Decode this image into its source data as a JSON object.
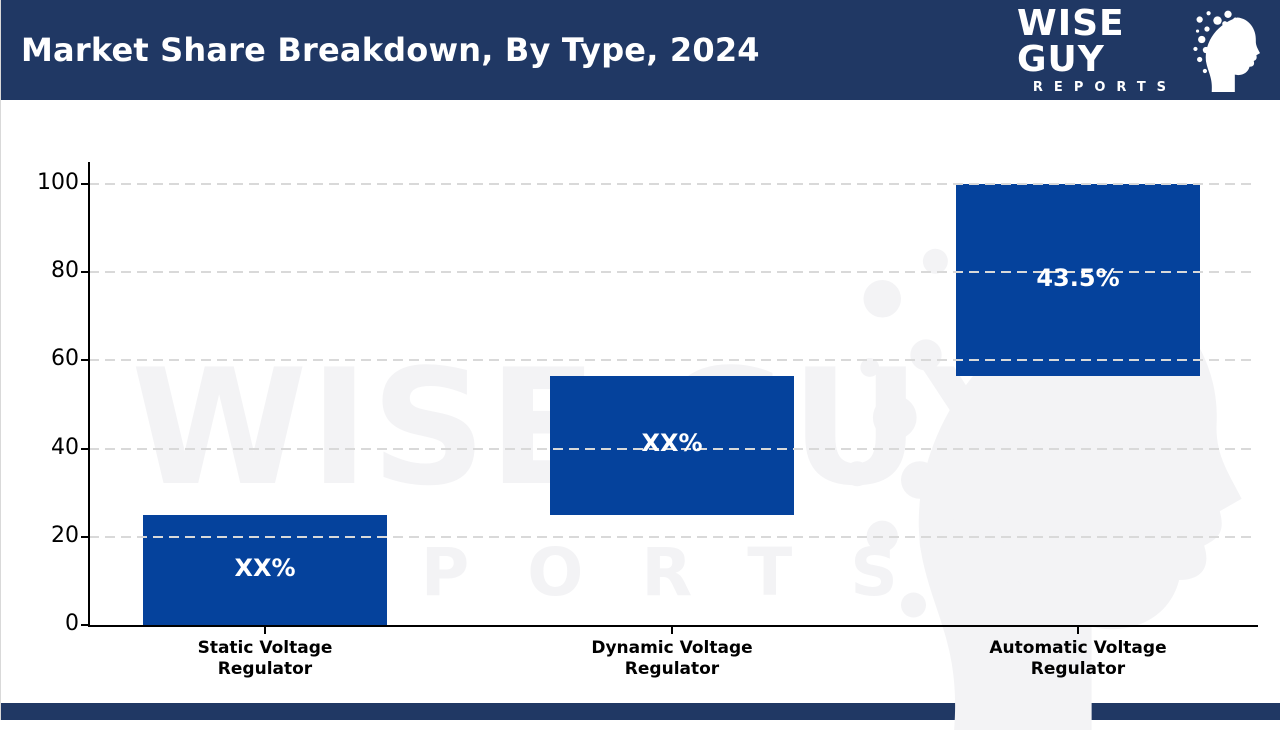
{
  "header": {
    "title": "Market Share Breakdown, By Type, 2024",
    "logo": {
      "name": "WISE GUY",
      "tagline": "REPORTS"
    }
  },
  "watermark": {
    "name": "WISE GUY",
    "tagline": "REPORTS"
  },
  "colors": {
    "header_bg": "#203864",
    "footer_bg": "#203864",
    "bar": "#05429C",
    "grid": "#D9D9D9",
    "axis": "#000000",
    "value_label": "#FFFFFF",
    "watermark": "#F3F3F5",
    "background": "#FFFFFF"
  },
  "chart_data": {
    "type": "bar",
    "subtype": "floating-segment-waterfall",
    "title": "Market Share Breakdown, By Type, 2024",
    "categories": [
      "Static Voltage Regulator",
      "Dynamic Voltage Regulator",
      "Automatic Voltage Regulator"
    ],
    "segments": [
      {
        "category": "Static Voltage Regulator",
        "start": 0,
        "end": 25,
        "label": "XX%"
      },
      {
        "category": "Dynamic Voltage Regulator",
        "start": 25,
        "end": 56.5,
        "label": "XX%"
      },
      {
        "category": "Automatic Voltage Regulator",
        "start": 56.5,
        "end": 100,
        "label": "43.5%"
      }
    ],
    "yticks": [
      0,
      20,
      40,
      60,
      80,
      100
    ],
    "ylim": [
      0,
      105
    ],
    "grid": "dashed-horizontal",
    "legend": "none",
    "bar_color": "#05429C",
    "value_label_color": "#FFFFFF"
  }
}
